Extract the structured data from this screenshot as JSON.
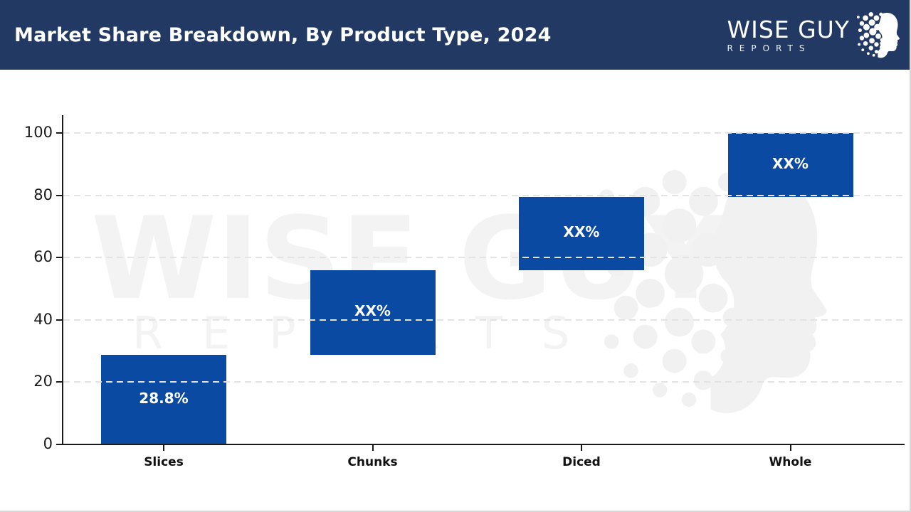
{
  "header": {
    "title": "Market Share Breakdown, By Product Type, 2024",
    "bg_color": "#223A63",
    "logo": {
      "line1": "WISE GUY",
      "line2": "REPORTS"
    }
  },
  "watermark": {
    "line1": "WISE GUY",
    "line2": "REPORTS"
  },
  "chart_data": {
    "type": "bar",
    "subtype": "waterfall",
    "title": "Market Share Breakdown, By Product Type, 2024",
    "xlabel": "",
    "ylabel": "",
    "categories": [
      "Slices",
      "Chunks",
      "Diced",
      "Whole"
    ],
    "bars": [
      {
        "category": "Slices",
        "start": 0,
        "end": 28.8,
        "label": "28.8%"
      },
      {
        "category": "Chunks",
        "start": 28.8,
        "end": 56,
        "label": "XX%"
      },
      {
        "category": "Diced",
        "start": 56,
        "end": 79.5,
        "label": "XX%"
      },
      {
        "category": "Whole",
        "start": 79.5,
        "end": 100,
        "label": "XX%"
      }
    ],
    "yticks": [
      0,
      20,
      40,
      60,
      80,
      100
    ],
    "ylim": [
      0,
      105
    ],
    "grid": "horizontal-dashed",
    "legend": false,
    "bar_color": "#0B4AA2",
    "bar_label_color": "#ffffff",
    "grid_color": "#e3e3e3",
    "axis_color": "#1a1a1a"
  }
}
